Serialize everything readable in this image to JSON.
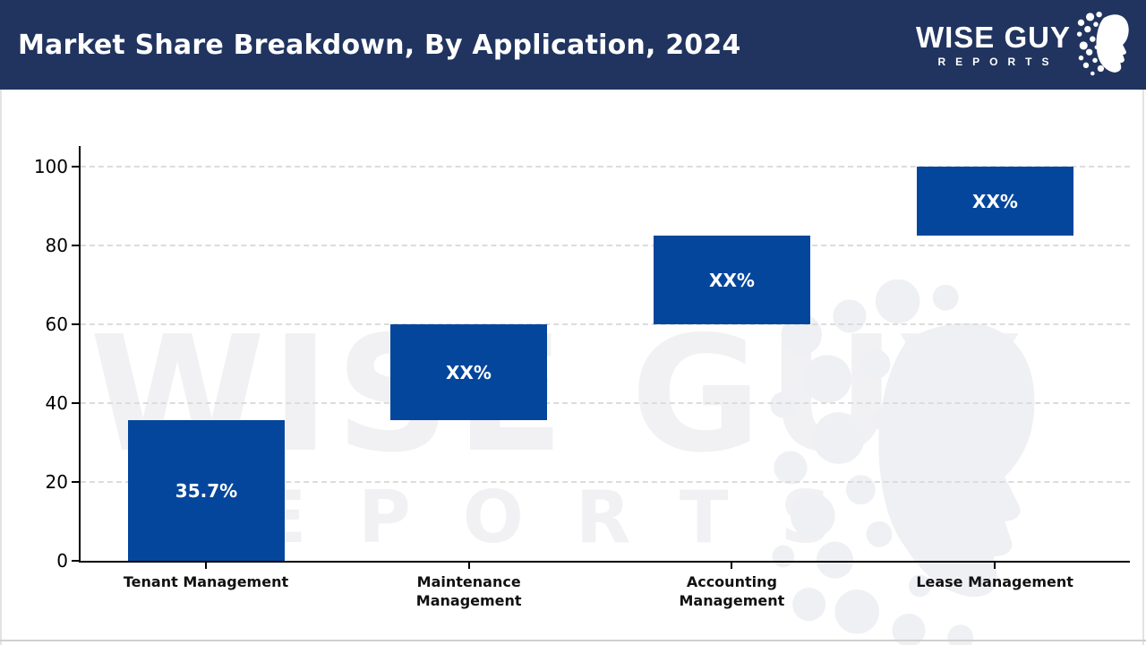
{
  "header": {
    "title": "Market Share Breakdown, By Application, 2024",
    "logo": {
      "wordmark": "WISE GUY",
      "subtext": "REPORTS"
    }
  },
  "watermark": {
    "wordmark": "WISE GUY",
    "subtext": "REPORTS"
  },
  "chart_data": {
    "type": "bar",
    "subtype": "waterfall",
    "title": "Market Share Breakdown, By Application, 2024",
    "categories": [
      "Tenant Management",
      "Maintenance Management",
      "Accounting Management",
      "Lease Management"
    ],
    "segments": [
      {
        "category": "Tenant Management",
        "start": 0,
        "end": 35.7,
        "label": "35.7%"
      },
      {
        "category": "Maintenance Management",
        "start": 35.7,
        "end": 60,
        "label": "XX%"
      },
      {
        "category": "Accounting Management",
        "start": 60,
        "end": 82.5,
        "label": "XX%"
      },
      {
        "category": "Lease Management",
        "start": 82.5,
        "end": 100,
        "label": "XX%"
      }
    ],
    "yticks": [
      0,
      20,
      40,
      60,
      80,
      100
    ],
    "ylim": [
      0,
      105
    ],
    "xlabel": "",
    "ylabel": "",
    "grid": "horizontal-dashed",
    "legend": "none",
    "bar_color": "#04469c",
    "value_label_color": "#ffffff"
  },
  "colors": {
    "header_bg": "#20345f",
    "bar": "#04469c",
    "grid": "#dcdcdc",
    "axis": "#000000",
    "watermark": "#f1f1f4",
    "divider": "#cfcfcf"
  }
}
